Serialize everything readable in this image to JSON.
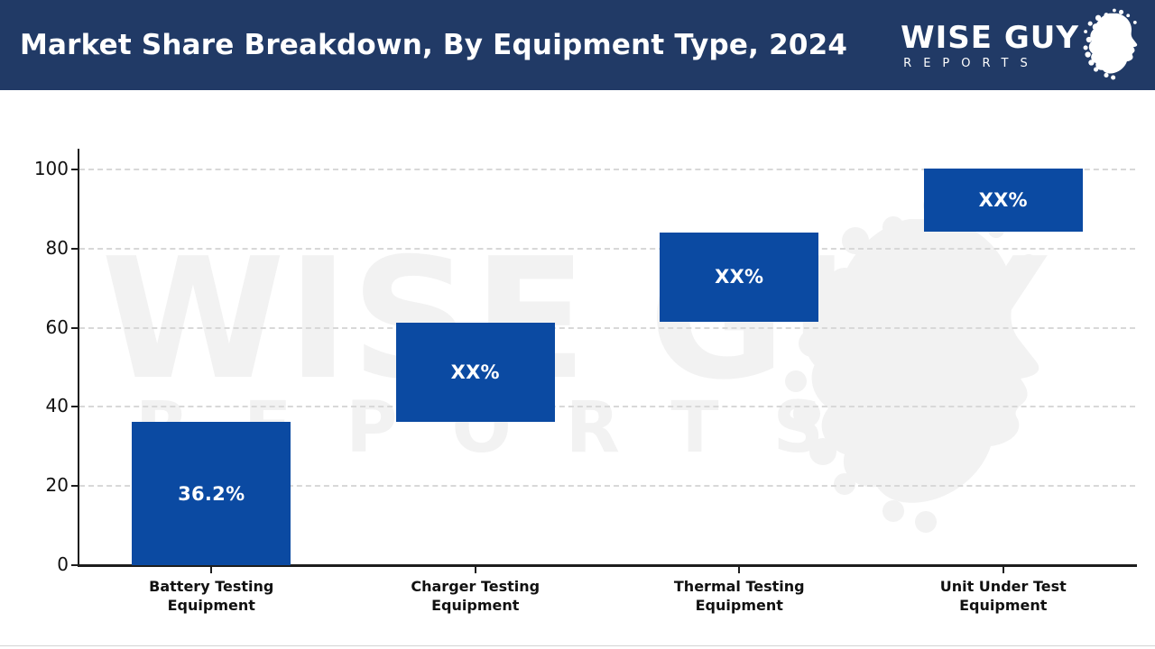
{
  "header": {
    "title": "Market Share Breakdown, By Equipment Type, 2024",
    "logo": {
      "line1": "WISE GUY",
      "line2": "REPORTS"
    }
  },
  "watermark": {
    "line1": "WISE GUY",
    "line2": "REPORTS"
  },
  "chart_data": {
    "type": "bar",
    "subtype": "waterfall",
    "title": "Market Share Breakdown, By Equipment Type, 2024",
    "categories": [
      {
        "line1": "Battery Testing",
        "line2": "Equipment"
      },
      {
        "line1": "Charger Testing",
        "line2": "Equipment"
      },
      {
        "line1": "Thermal Testing",
        "line2": "Equipment"
      },
      {
        "line1": "Unit Under Test",
        "line2": "Equipment"
      }
    ],
    "segments": [
      {
        "start": 0,
        "end": 36.2,
        "label": "36.2%"
      },
      {
        "start": 36.2,
        "end": 61.3,
        "label": "XX%"
      },
      {
        "start": 61.5,
        "end": 84.1,
        "label": "XX%"
      },
      {
        "start": 84.3,
        "end": 100.3,
        "label": "XX%"
      }
    ],
    "yticks": [
      0,
      20,
      40,
      60,
      80,
      100
    ],
    "ylim": [
      0,
      105
    ],
    "xlabel": "",
    "ylabel": "",
    "grid": "horizontal-dashed",
    "legend": "none"
  },
  "colors": {
    "header_bg": "#213A66",
    "bar": "#0B4AA2",
    "bar_label": "#FFFFFF",
    "grid": "#D8D8D8",
    "axis": "#1E1E1E",
    "watermark": "#F2F2F2"
  }
}
